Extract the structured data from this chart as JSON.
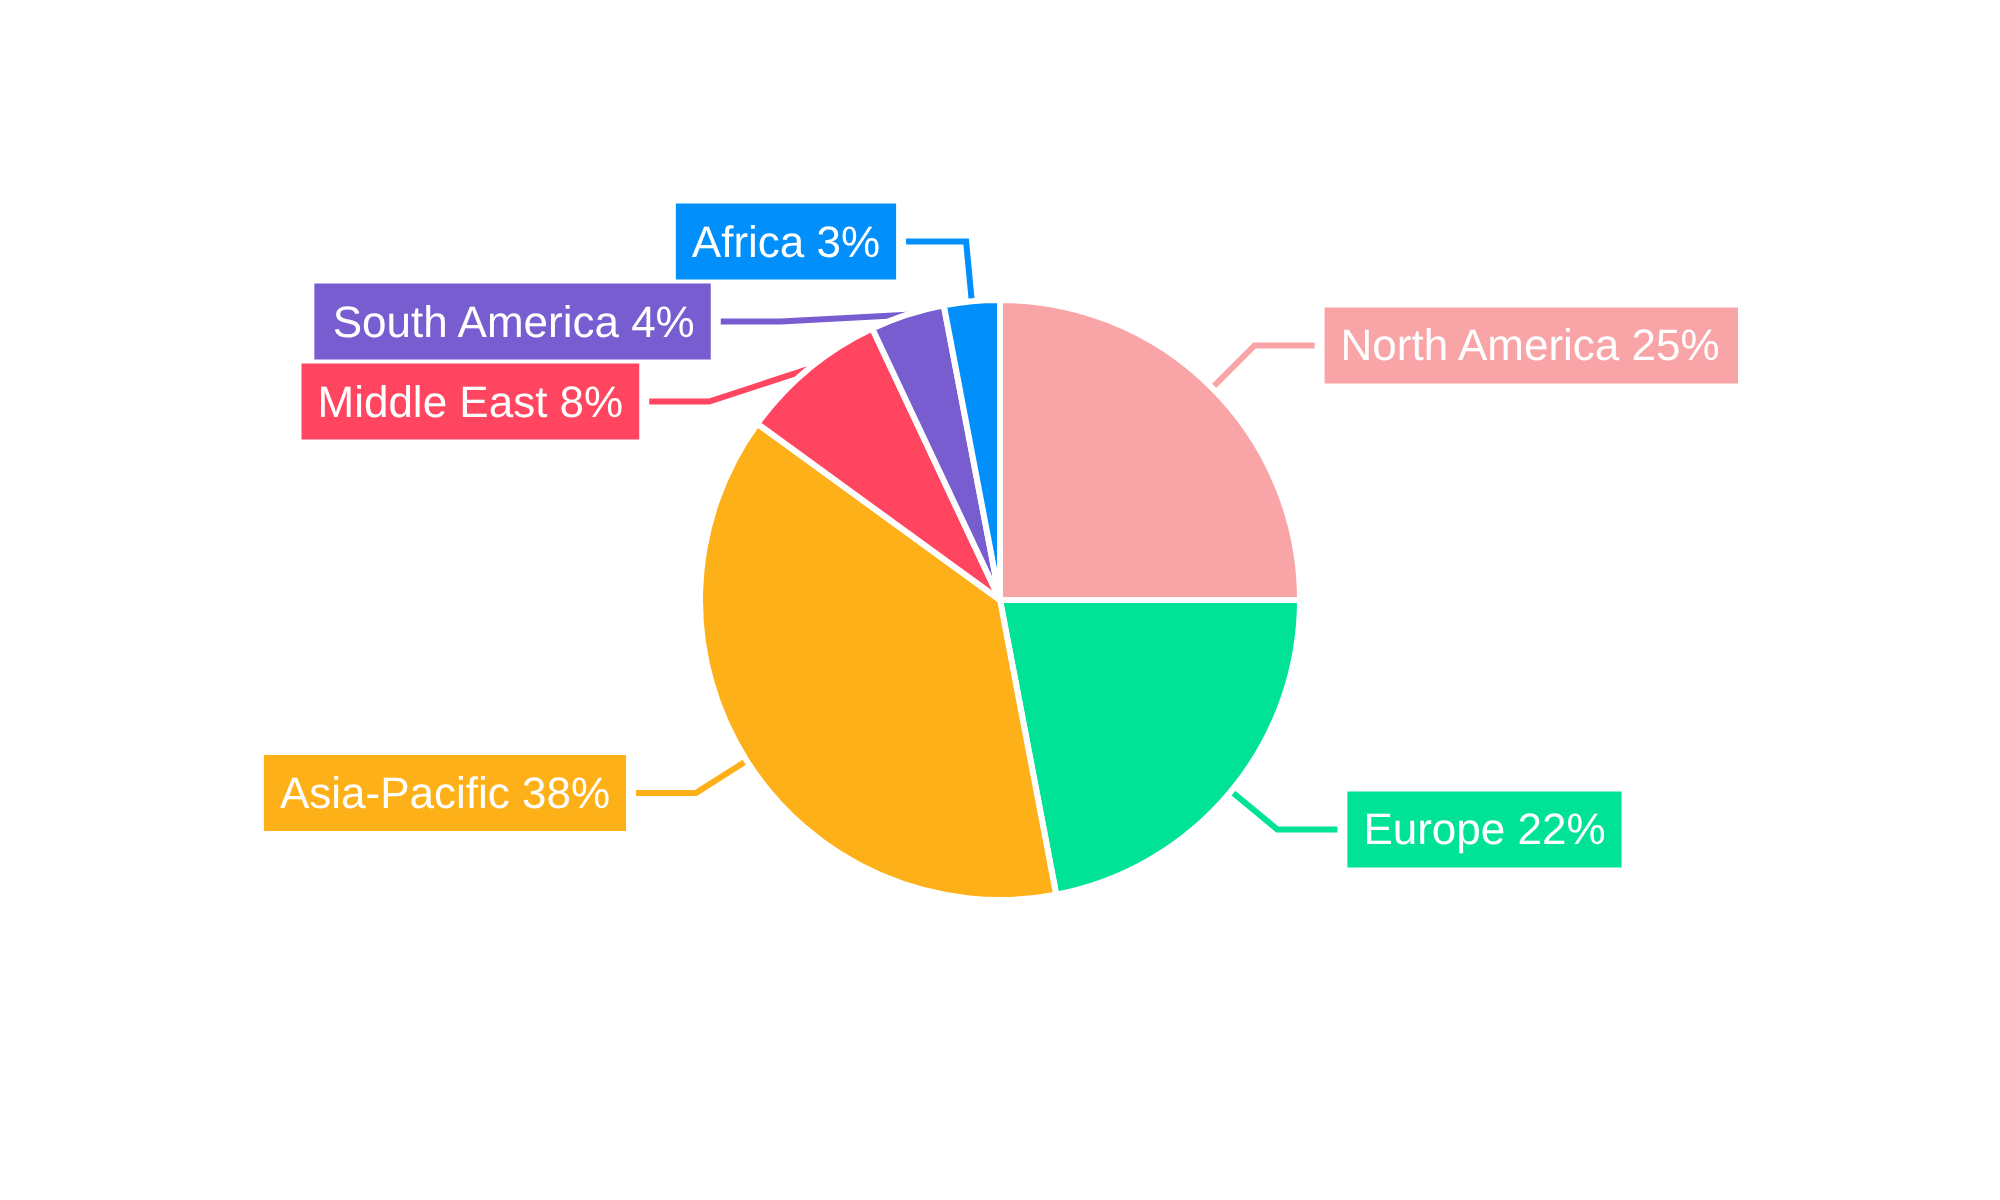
{
  "chart_data": {
    "type": "pie",
    "categories": [
      "North America",
      "Europe",
      "Asia-Pacific",
      "Middle East",
      "South America",
      "Africa"
    ],
    "values": [
      25,
      22,
      38,
      8,
      4,
      3
    ],
    "value_labels": [
      "25%",
      "22%",
      "38%",
      "8%",
      "4%",
      "3%"
    ],
    "colors": [
      "#f9a4a6",
      "#00e396",
      "#feb019",
      "#ff4560",
      "#775dd0",
      "#008ffb"
    ],
    "legend": false
  }
}
